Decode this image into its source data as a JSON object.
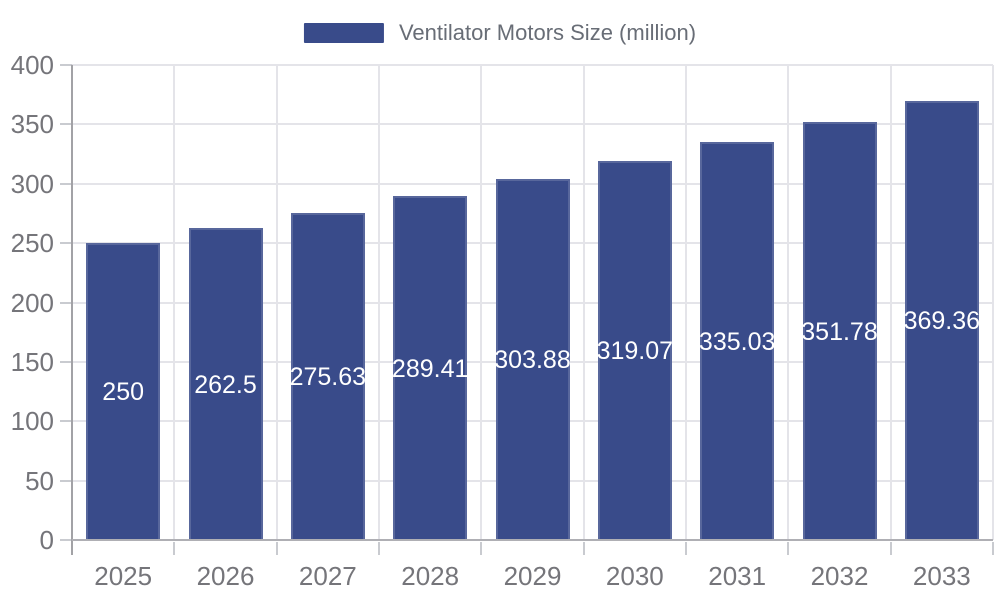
{
  "legend": {
    "label": "Ventilator Motors Size (million)"
  },
  "colors": {
    "bar": "#394B8A",
    "grid": "#E4E4E9",
    "axis_line_y": "#A2A2A6",
    "axis_line_x": "#AFAFB4",
    "tick": "#C9CBD0",
    "axis_text": "#75757A",
    "legend_text": "#686D76",
    "value_text": "#FFFFFF"
  },
  "chart_data": {
    "type": "bar",
    "title": "",
    "xlabel": "",
    "ylabel": "",
    "categories": [
      "2025",
      "2026",
      "2027",
      "2028",
      "2029",
      "2030",
      "2031",
      "2032",
      "2033"
    ],
    "values": [
      250,
      262.5,
      275.63,
      289.41,
      303.88,
      319.07,
      335.03,
      351.78,
      369.36
    ],
    "series": [
      {
        "name": "Ventilator Motors Size (million)",
        "values": [
          250,
          262.5,
          275.63,
          289.41,
          303.88,
          319.07,
          335.03,
          351.78,
          369.36
        ]
      }
    ],
    "ylim": [
      0,
      400
    ],
    "ytick_step": 50,
    "ytick_labels": [
      "0",
      "50",
      "100",
      "150",
      "200",
      "250",
      "300",
      "350",
      "400"
    ],
    "grid": true,
    "grid_vertical": true,
    "legend_position": "top-center",
    "value_label_position": "inside-center",
    "bar_color": "#394B8A"
  }
}
